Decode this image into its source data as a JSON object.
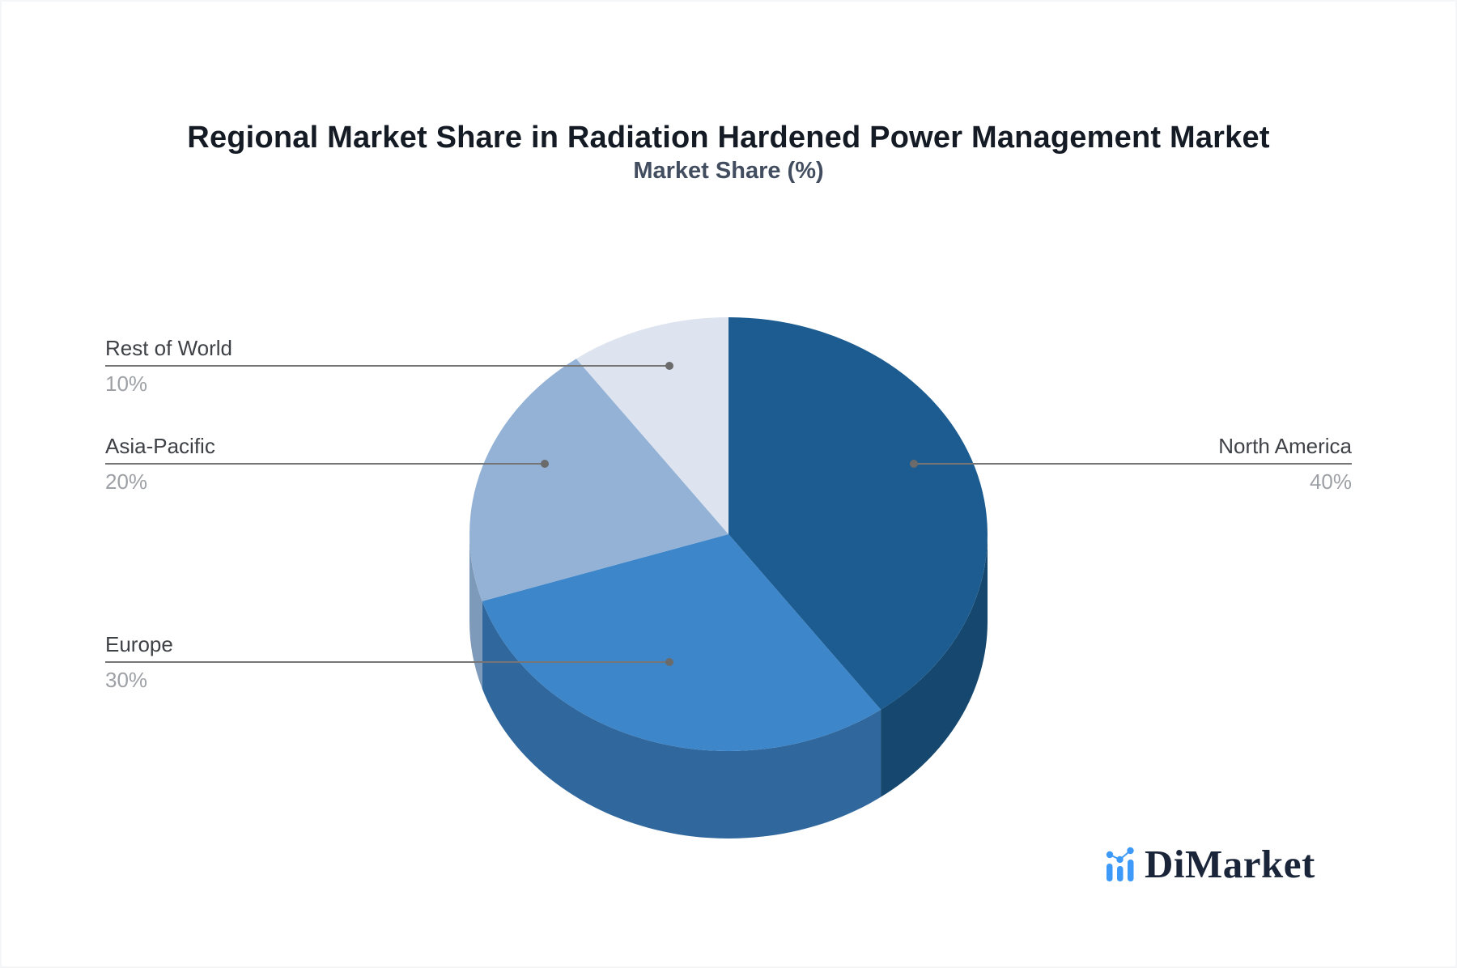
{
  "chart_data": {
    "type": "pie",
    "effect": "3d",
    "title": "Regional Market Share in Radiation Hardened Power Management Market",
    "subtitle": "Market Share (%)",
    "unit": "%",
    "start_angle_deg": 0,
    "clockwise": true,
    "legend_position": "callout-labels",
    "slices": [
      {
        "label": "North America",
        "value": 40,
        "display": "40%",
        "color": "#1d5c90",
        "side_color": "#16486f"
      },
      {
        "label": "Europe",
        "value": 30,
        "display": "30%",
        "color": "#3d86ca",
        "side_color": "#30689d"
      },
      {
        "label": "Asia-Pacific",
        "value": 20,
        "display": "20%",
        "color": "#94b2d6",
        "side_color": "#7e9aba"
      },
      {
        "label": "Rest of World",
        "value": 10,
        "display": "10%",
        "color": "#dde4ef",
        "side_color": "#b9c4d6"
      }
    ],
    "connector_color": "#757575",
    "label_color": "#3e4146",
    "percent_color": "#9da1a6"
  },
  "logo": {
    "text": "DiMarket",
    "icon": "bar-line-chart-icon",
    "accent_color": "#3e9af8",
    "text_color": "#1b2539"
  }
}
